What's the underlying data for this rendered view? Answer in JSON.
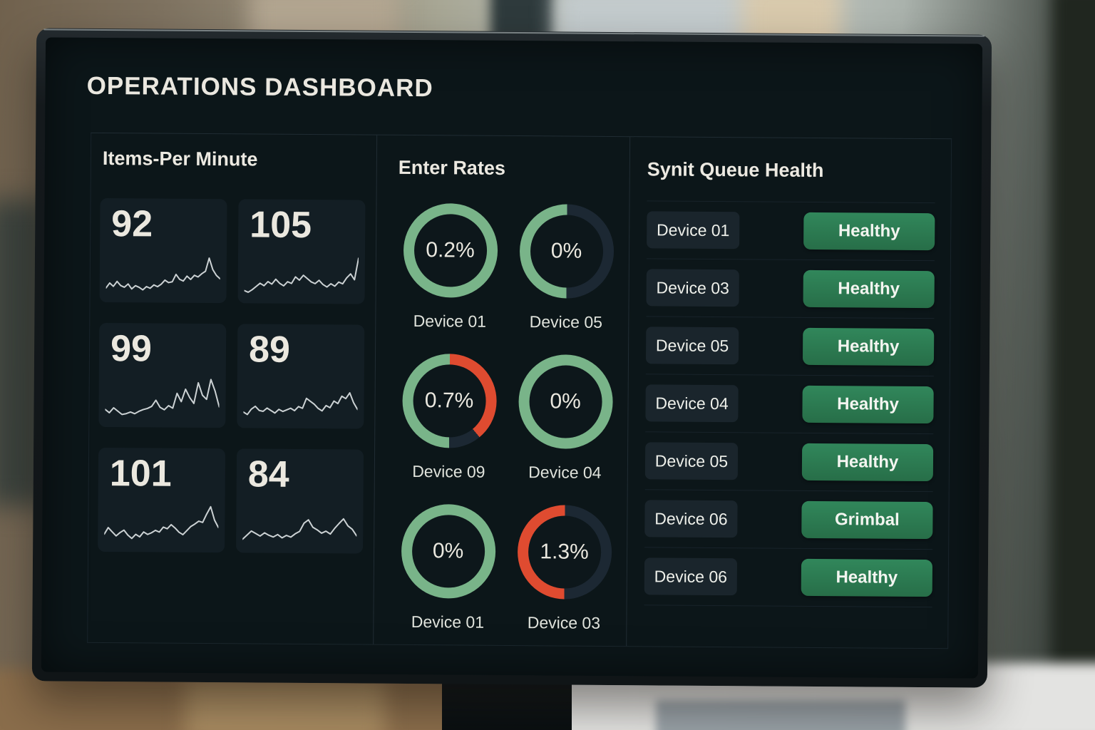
{
  "title": "OPERATIONS DASHBOARD",
  "colors": {
    "screen_bg": "#0c1619",
    "card_bg": "#131e24",
    "text_primary": "#ebe8df",
    "sparkline": "#ccd2d4",
    "gauge_green": "#79b489",
    "gauge_red": "#df4b30",
    "gauge_track": "#1c2833",
    "badge_green": "#2b7b52",
    "pill_bg": "#1a252c"
  },
  "panels": {
    "items_per_minute": {
      "title": "Items-Per Minute",
      "cards": [
        {
          "value": "92",
          "spark": [
            14,
            26,
            18,
            30,
            20,
            16,
            24,
            12,
            20,
            16,
            10,
            18,
            14,
            22,
            18,
            24,
            34,
            28,
            30,
            48,
            36,
            32,
            44,
            36,
            46,
            42,
            50,
            56,
            88,
            60,
            46,
            38
          ]
        },
        {
          "value": "105",
          "spark": [
            10,
            6,
            12,
            20,
            28,
            22,
            32,
            26,
            38,
            28,
            22,
            32,
            28,
            44,
            36,
            48,
            40,
            32,
            28,
            36,
            26,
            20,
            28,
            22,
            32,
            28,
            42,
            52,
            38,
            90
          ]
        },
        {
          "value": "99",
          "spark": [
            22,
            14,
            26,
            18,
            10,
            12,
            16,
            12,
            18,
            22,
            25,
            30,
            45,
            28,
            22,
            32,
            26,
            62,
            42,
            72,
            52,
            38,
            88,
            58,
            48,
            96,
            68,
            30
          ]
        },
        {
          "value": "89",
          "spark": [
            18,
            12,
            25,
            32,
            22,
            20,
            28,
            22,
            16,
            25,
            20,
            24,
            28,
            22,
            32,
            28,
            52,
            45,
            38,
            28,
            22,
            35,
            30,
            46,
            40,
            58,
            52,
            66,
            42,
            26
          ]
        },
        {
          "value": "101",
          "spark": [
            22,
            38,
            28,
            18,
            26,
            32,
            20,
            12,
            22,
            16,
            28,
            22,
            26,
            32,
            28,
            40,
            36,
            46,
            38,
            28,
            22,
            32,
            42,
            48,
            55,
            52,
            72,
            90,
            58,
            40
          ]
        },
        {
          "value": "84",
          "spark": [
            12,
            22,
            32,
            26,
            20,
            28,
            22,
            18,
            24,
            16,
            22,
            18,
            26,
            32,
            52,
            60,
            42,
            36,
            28,
            33,
            26,
            40,
            52,
            63,
            46,
            38,
            22
          ]
        }
      ]
    },
    "enter_rates": {
      "title": "Enter Rates",
      "gauges": [
        {
          "value": "0.2%",
          "device": "Device 01",
          "segments": [
            [
              "green",
              0,
              360
            ]
          ]
        },
        {
          "value": "0%",
          "device": "Device 05",
          "segments": [
            [
              "track",
              0,
              180
            ],
            [
              "green",
              180,
              360
            ]
          ]
        },
        {
          "value": "0.7%",
          "device": "Device 09",
          "segments": [
            [
              "red",
              0,
              140
            ],
            [
              "track",
              140,
              180
            ],
            [
              "green",
              180,
              360
            ]
          ]
        },
        {
          "value": "0%",
          "device": "Device 04",
          "segments": [
            [
              "green",
              0,
              360
            ]
          ]
        },
        {
          "value": "0%",
          "device": "Device 01",
          "segments": [
            [
              "green",
              0,
              360
            ]
          ]
        },
        {
          "value": "1.3%",
          "device": "Device 03",
          "segments": [
            [
              "track",
              0,
              180
            ],
            [
              "red",
              180,
              360
            ]
          ]
        }
      ]
    },
    "queue_health": {
      "title": "Synit Queue Health",
      "rows": [
        {
          "device": "Device 01",
          "status": "Healthy"
        },
        {
          "device": "Device 03",
          "status": "Healthy"
        },
        {
          "device": "Device 05",
          "status": "Healthy"
        },
        {
          "device": "Device 04",
          "status": "Healthy"
        },
        {
          "device": "Device 05",
          "status": "Healthy"
        },
        {
          "device": "Device 06",
          "status": "Grimbal"
        },
        {
          "device": "Device 06",
          "status": "Healthy"
        }
      ]
    }
  }
}
